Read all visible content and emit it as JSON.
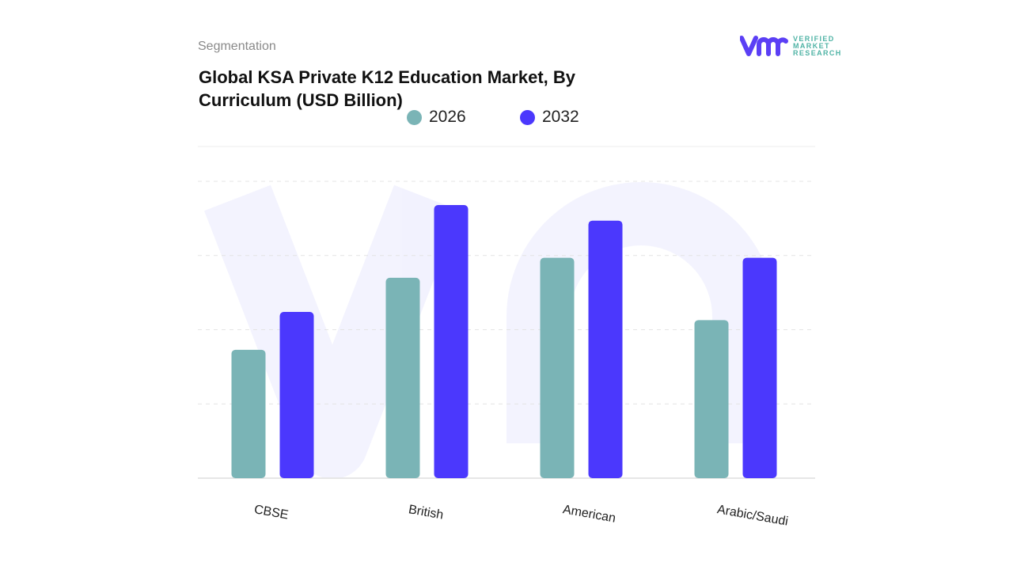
{
  "header": {
    "section": "Segmentation",
    "title": "Global KSA Private K12 Education Market, By Curriculum (USD Billion)"
  },
  "logo": {
    "lines": [
      "VERIFIED",
      "MARKET",
      "RESEARCH"
    ],
    "mark": "vmr",
    "color": "#5b3ff5",
    "text_color": "#4fb3a5"
  },
  "chart_data": {
    "type": "bar",
    "title": "Global KSA Private K12 Education Market, By Curriculum (USD Billion)",
    "categories": [
      "CBSE",
      "British",
      "American",
      "Arabic/Saudi"
    ],
    "series": [
      {
        "name": "2026",
        "color": "#7ab4b6",
        "values": [
          1.73,
          2.7,
          2.97,
          2.13
        ]
      },
      {
        "name": "2032",
        "color": "#4b38fd",
        "values": [
          2.24,
          3.68,
          3.47,
          2.97
        ]
      }
    ],
    "xlabel": "",
    "ylabel": "",
    "ylim": [
      0,
      4
    ],
    "grid": true,
    "y_tick_labels_shown": false,
    "legend_position": "top-center"
  }
}
